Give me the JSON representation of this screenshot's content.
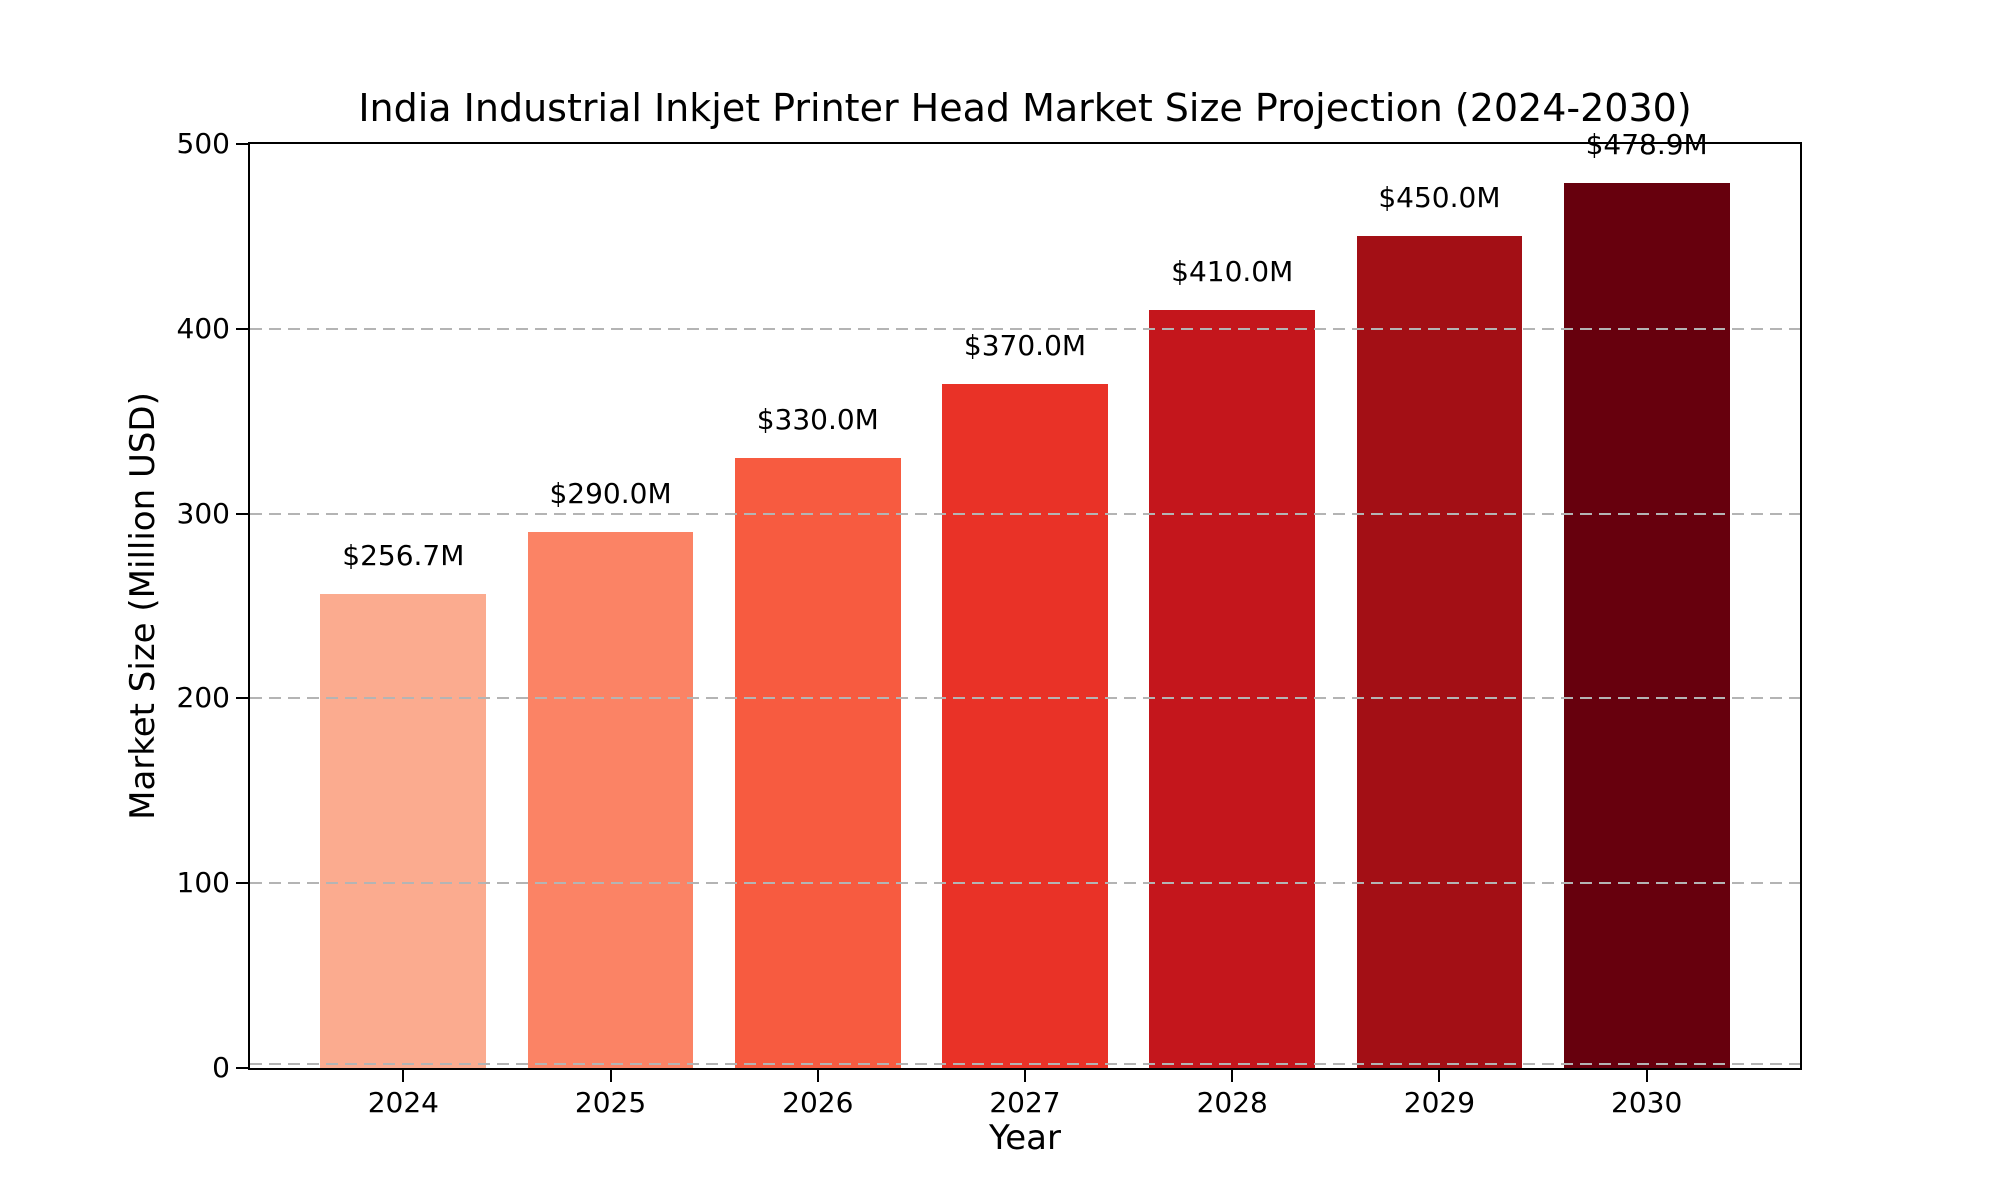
{
  "chart_data": {
    "type": "bar",
    "title": "India Industrial Inkjet Printer Head Market Size Projection (2024-2030)",
    "xlabel": "Year",
    "ylabel": "Market Size (Million USD)",
    "categories": [
      "2024",
      "2025",
      "2026",
      "2027",
      "2028",
      "2029",
      "2030"
    ],
    "values": [
      256.7,
      290.0,
      330.0,
      370.0,
      410.0,
      450.0,
      478.9
    ],
    "bar_labels": [
      "$256.7M",
      "$290.0M",
      "$330.0M",
      "$370.0M",
      "$410.0M",
      "$450.0M",
      "$478.9M"
    ],
    "bar_colors": [
      "#fbab8f",
      "#fb8365",
      "#f75b40",
      "#e93227",
      "#c4161c",
      "#a30f15",
      "#67000d"
    ],
    "ylim": [
      0,
      500
    ],
    "yticks": [
      0,
      100,
      200,
      300,
      400,
      500
    ],
    "grid": "horizontal-dashed",
    "grid_color": "#b4b4b4",
    "legend": null,
    "background_color": "#ffffff",
    "spine_color": "#000000"
  }
}
